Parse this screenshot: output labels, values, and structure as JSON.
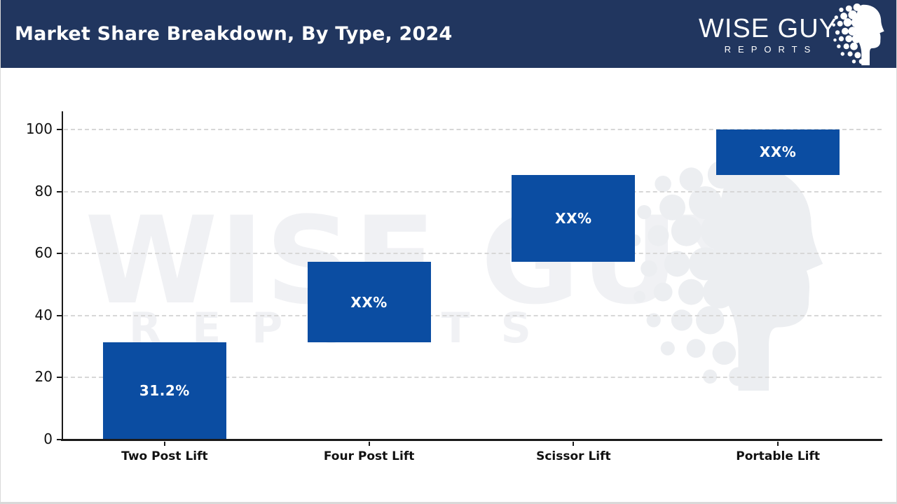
{
  "header": {
    "title": "Market Share Breakdown, By Type, 2024",
    "bg_color": "#21365f",
    "logo": {
      "line1": "WISE GUY",
      "line2": "REPORTS",
      "face_icon": "dotted-head-profile-icon"
    }
  },
  "watermark": {
    "line1": "WISE GUY",
    "line2": "REPORTS",
    "face_icon": "dotted-head-profile-icon"
  },
  "chart_data": {
    "type": "bar",
    "subtype": "waterfall-stacked-breakdown",
    "title": "Market Share Breakdown, By Type, 2024",
    "categories": [
      "Two Post Lift",
      "Four Post Lift",
      "Scissor Lift",
      "Portable Lift"
    ],
    "segments": [
      {
        "category": "Two Post Lift",
        "from": 0,
        "to": 31.2,
        "value": 31.2,
        "label": "31.2%"
      },
      {
        "category": "Four Post Lift",
        "from": 31.2,
        "to": 57.2,
        "value": 26.0,
        "label": "XX%"
      },
      {
        "category": "Scissor Lift",
        "from": 57.2,
        "to": 85.4,
        "value": 28.2,
        "label": "XX%"
      },
      {
        "category": "Portable Lift",
        "from": 85.4,
        "to": 100,
        "value": 14.6,
        "label": "XX%"
      }
    ],
    "xlabel": "",
    "ylabel": "",
    "ylim": [
      0,
      100
    ],
    "yticks": [
      0,
      20,
      40,
      60,
      80,
      100
    ],
    "grid": "horizontal-dashed",
    "legend": "none",
    "bar_color": "#0b4da2",
    "axis_color": "#1a1a1a",
    "gridline_color": "#d7d7d7"
  }
}
